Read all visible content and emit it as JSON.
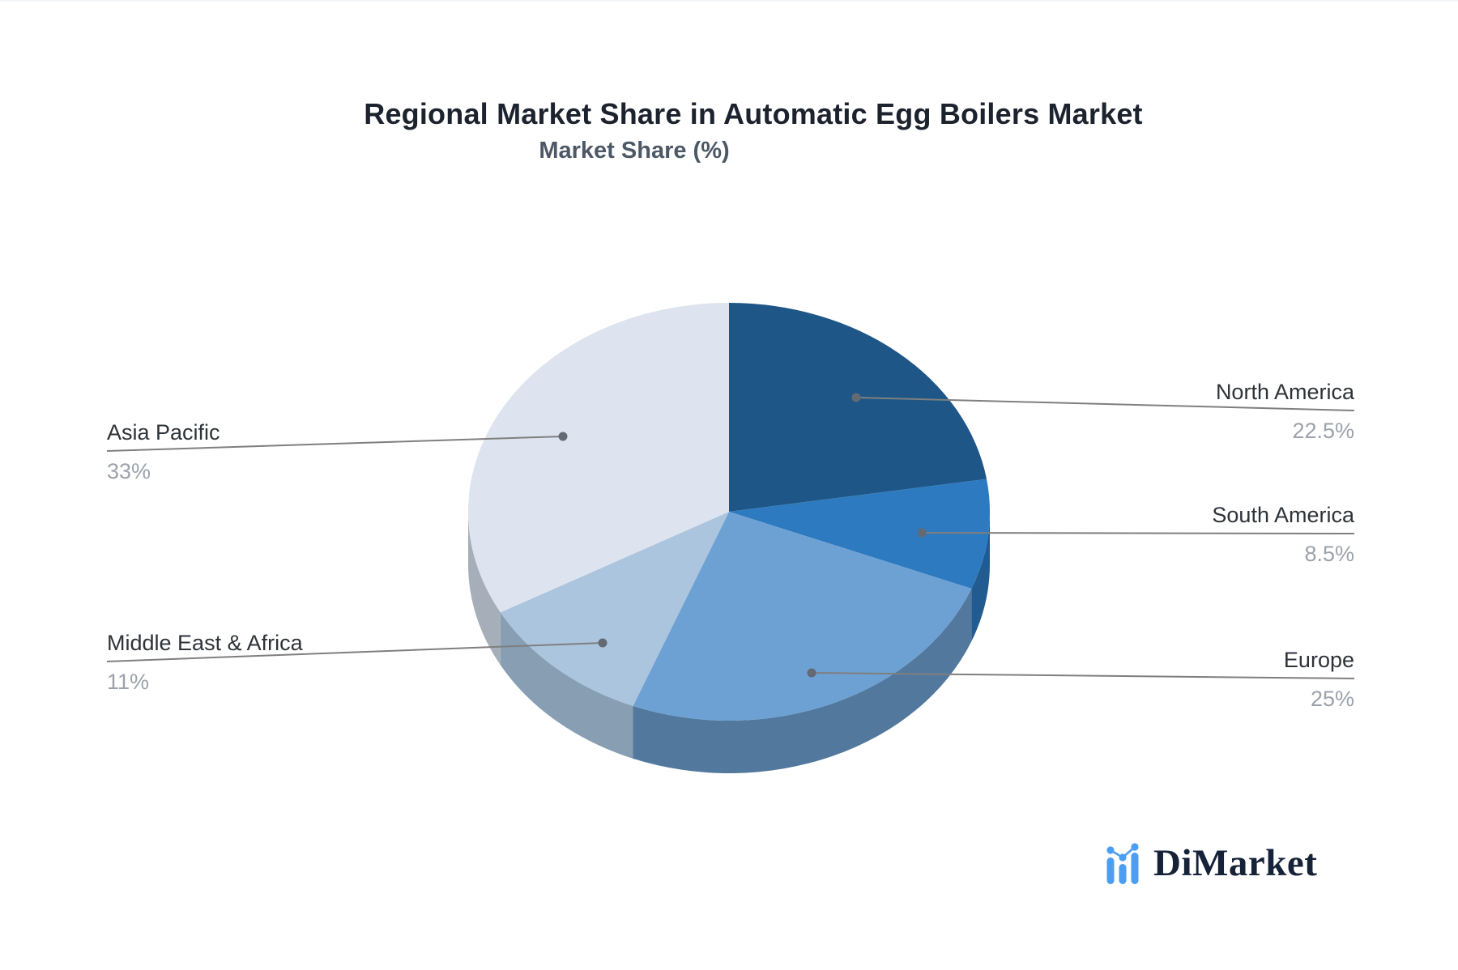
{
  "title": "Regional Market Share in Automatic Egg Boilers Market",
  "subtitle": "Market Share (%)",
  "chart_data": {
    "type": "pie",
    "style": "3d",
    "title": "Regional Market Share in Automatic Egg Boilers Market",
    "subtitle": "Market Share (%)",
    "unit": "%",
    "start_angle_deg": 0,
    "direction": "clockwise",
    "legend_position": "none",
    "slices": [
      {
        "label": "North America",
        "value": 22.5,
        "display": "22.5%",
        "color": "#1e5687",
        "side_color": "#173f66"
      },
      {
        "label": "South America",
        "value": 8.5,
        "display": "8.5%",
        "color": "#2d7ac0",
        "side_color": "#215b90"
      },
      {
        "label": "Europe",
        "value": 25,
        "display": "25%",
        "color": "#6ea1d3",
        "side_color": "#52789e"
      },
      {
        "label": "Middle East & Africa",
        "value": 11,
        "display": "11%",
        "color": "#abc5de",
        "side_color": "#879eb3"
      },
      {
        "label": "Asia Pacific",
        "value": 33,
        "display": "33%",
        "color": "#dde4ef",
        "side_color": "#a6aeba"
      }
    ],
    "leader_line_color": "#7f7f7f",
    "leader_dot_color": "#636a73",
    "label_color": "#2e3338",
    "value_color": "#9ca2a9"
  },
  "logo": {
    "text": "DiMarket",
    "icon": "bar-chart-logo-icon",
    "accent_color": "#4b9ef2",
    "text_color": "#152238"
  }
}
